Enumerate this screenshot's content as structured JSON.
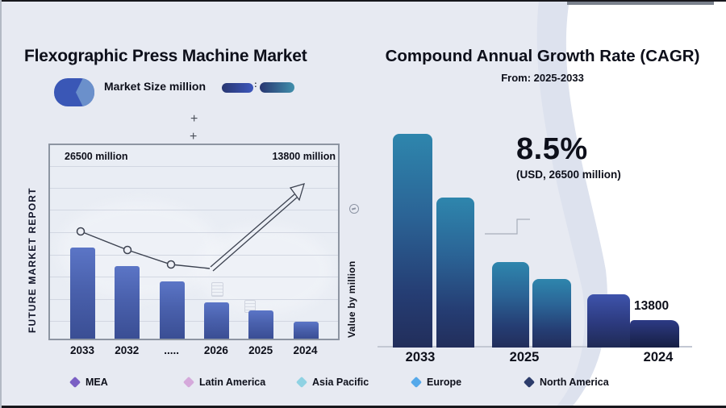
{
  "header": {
    "left_title": "Flexographic Press Machine Market",
    "right_title": "Compound Annual Growth Rate (CAGR)",
    "right_subtitle": "From: 2025-2033",
    "market_size_label": "Market Size million",
    "ratio_separator": ":"
  },
  "left_chart": {
    "annotation_left": "26500 million",
    "annotation_right": "13800 million",
    "watermark": "FUTURE MARKET REPORT",
    "plus_mark": "+"
  },
  "right_chart": {
    "cagr_value": "8.5%",
    "cagr_note": "(USD, 26500 million)",
    "value_axis_label": "Value by million",
    "callout_value": "13800"
  },
  "legend": {
    "items": [
      {
        "label": "MEA",
        "color": "#7a5fc4"
      },
      {
        "label": "Latin America",
        "color": "#d5a9db"
      },
      {
        "label": "Asia Pacific",
        "color": "#8fd2e3"
      },
      {
        "label": "Europe",
        "color": "#55a9ea"
      },
      {
        "label": "North America",
        "color": "#2c3c6b"
      }
    ]
  },
  "colors": {
    "background": "#e7eaf2",
    "left_bar_top": "#5b75c6",
    "left_bar_bottom": "#3a4e94",
    "right_bar_teal_top": "#2e86ad",
    "right_bar_navy_bottom": "#222e5b",
    "right_bar_blue_top": "#3e53ab",
    "text": "#0d0f1a"
  },
  "chart_data": [
    {
      "id": "market-size-by-year",
      "type": "bar",
      "title": "Market Size million",
      "categories": [
        "2033",
        "2032",
        ".....",
        "2026",
        "2025",
        "2024"
      ],
      "series": [
        {
          "name": "Market Size million",
          "values_relative": [
            100,
            80,
            63,
            40,
            31,
            19
          ]
        }
      ],
      "units": "percent of tallest bar (decorative); labeled values: 2033 = 26500 million, 2024 = 13800 million",
      "annotations": {
        "top_left": "26500 million",
        "top_right": "13800 million"
      },
      "overlay": {
        "type": "line+arrow",
        "description": "declining line with 3 circle markers over bars 2033-2026, then outlined arrow rising to top-right"
      },
      "grid": "horizontal",
      "legend_position": "none"
    },
    {
      "id": "cagr-comparison",
      "type": "bar",
      "categories": [
        "2033",
        "2025",
        "2024"
      ],
      "series": [
        {
          "name": "primary-bar",
          "values_relative": [
            100,
            40,
            25
          ]
        },
        {
          "name": "secondary-bar",
          "values_relative": [
            70,
            32,
            13
          ]
        }
      ],
      "units": "percent of tallest bar (decorative); labeled value: 2024 secondary bar = 13800",
      "ylabel": "Value by million",
      "data_labels": {
        "2024": "13800"
      },
      "grid": "off",
      "legend_position": "none"
    }
  ]
}
